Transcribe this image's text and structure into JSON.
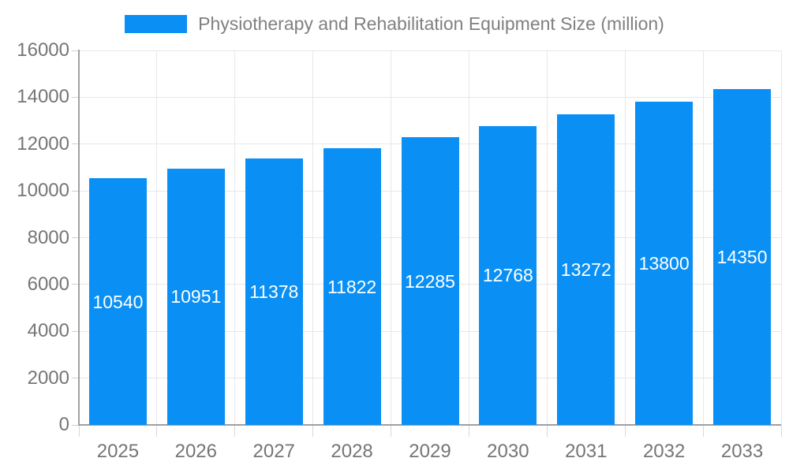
{
  "chart_data": {
    "type": "bar",
    "title": "Physiotherapy and Rehabilitation Equipment Size (million)",
    "legend": {
      "label": "Physiotherapy and Rehabilitation Equipment Size (million)",
      "position": "top",
      "swatch_color": "#0a90f4"
    },
    "categories": [
      "2025",
      "2026",
      "2027",
      "2028",
      "2029",
      "2030",
      "2031",
      "2032",
      "2033"
    ],
    "values": [
      10540,
      10951,
      11378,
      11822,
      12285,
      12768,
      13272,
      13800,
      14350
    ],
    "xlabel": "",
    "ylabel": "",
    "ylim": [
      0,
      16000
    ],
    "ytick_step": 2000,
    "ytick_labels": [
      "0",
      "2000",
      "4000",
      "6000",
      "8000",
      "10000",
      "12000",
      "14000",
      "16000"
    ],
    "grid": true,
    "bar_color": "#0a90f4",
    "bar_label_color": "#ffffff",
    "axis_color": "#a0a0a0",
    "grid_color": "#e7e7e7",
    "tick_label_color": "#757575",
    "legend_text_color": "#808080",
    "background_color": "#ffffff"
  }
}
